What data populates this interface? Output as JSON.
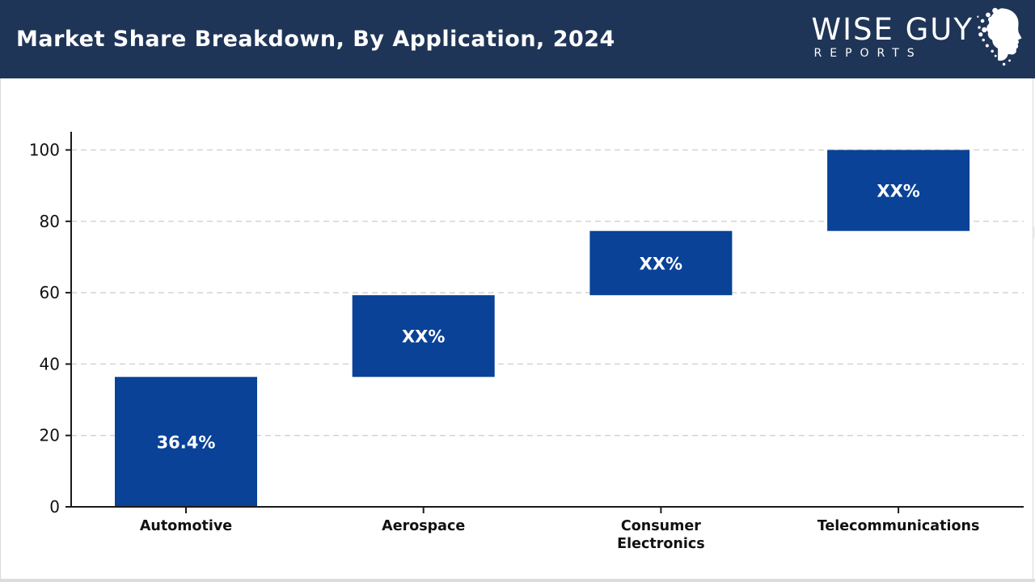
{
  "header": {
    "title": "Market Share Breakdown, By Application, 2024",
    "background": "#1f3557",
    "logo": {
      "line1": "WISE GUY",
      "line2": "REPORTS"
    }
  },
  "watermark": {
    "line1": "WISE GUY",
    "line2": "REPORTS"
  },
  "chart_data": {
    "type": "bar",
    "subtype": "waterfall",
    "title": "Market Share Breakdown, By Application, 2024",
    "categories": [
      "Automotive",
      "Aerospace",
      "Consumer\nElectronics",
      "Telecommunications"
    ],
    "segments": [
      {
        "category": "Automotive",
        "start": 0,
        "end": 36.4,
        "label": "36.4%"
      },
      {
        "category": "Aerospace",
        "start": 36.4,
        "end": 59.3,
        "label": "XX%"
      },
      {
        "category": "Consumer Electronics",
        "start": 59.3,
        "end": 77.3,
        "label": "XX%"
      },
      {
        "category": "Telecommunications",
        "start": 77.3,
        "end": 100,
        "label": "XX%"
      }
    ],
    "ylim": [
      0,
      100
    ],
    "yticks": [
      0,
      20,
      40,
      60,
      80,
      100
    ],
    "xlabel": "",
    "ylabel": "",
    "legend": "none",
    "grid": "horizontal-dashed",
    "bar_color": "#094296",
    "bar_label_color": "#ffffff",
    "axis_color": "#1a1a1a",
    "grid_color": "#d4d4d4",
    "tick_label_color": "#111111"
  }
}
